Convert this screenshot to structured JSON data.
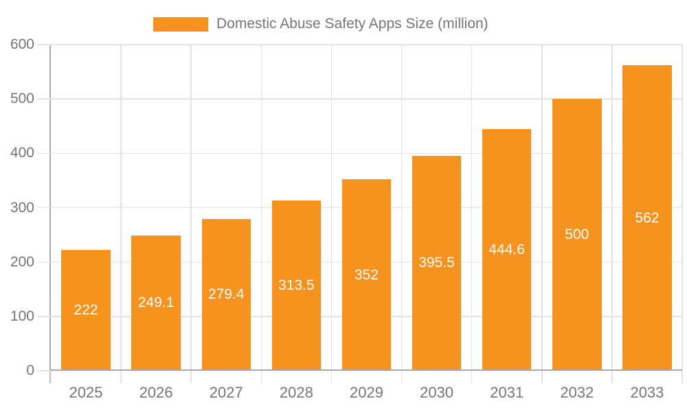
{
  "legend": {
    "label": "Domestic Abuse Safety Apps Size (million)"
  },
  "chart_data": {
    "type": "bar",
    "title": "Domestic Abuse Safety Apps Size (million)",
    "categories": [
      "2025",
      "2026",
      "2027",
      "2028",
      "2029",
      "2030",
      "2031",
      "2032",
      "2033"
    ],
    "values": [
      222,
      249.1,
      279.4,
      313.5,
      352,
      395.5,
      444.6,
      500,
      562
    ],
    "value_labels": [
      "222",
      "249.1",
      "279.4",
      "313.5",
      "352",
      "395.5",
      "444.6",
      "500",
      "562"
    ],
    "xlabel": "",
    "ylabel": "",
    "ylim": [
      0,
      600
    ],
    "yticks": [
      0,
      100,
      200,
      300,
      400,
      500,
      600
    ],
    "grid": true,
    "legend_position": "top-center",
    "colors": {
      "bar": "#f6921e",
      "bar_label": "#ffffff",
      "axis": "#a9a9a9",
      "grid": "#e3e3e3",
      "text": "#757575"
    }
  }
}
